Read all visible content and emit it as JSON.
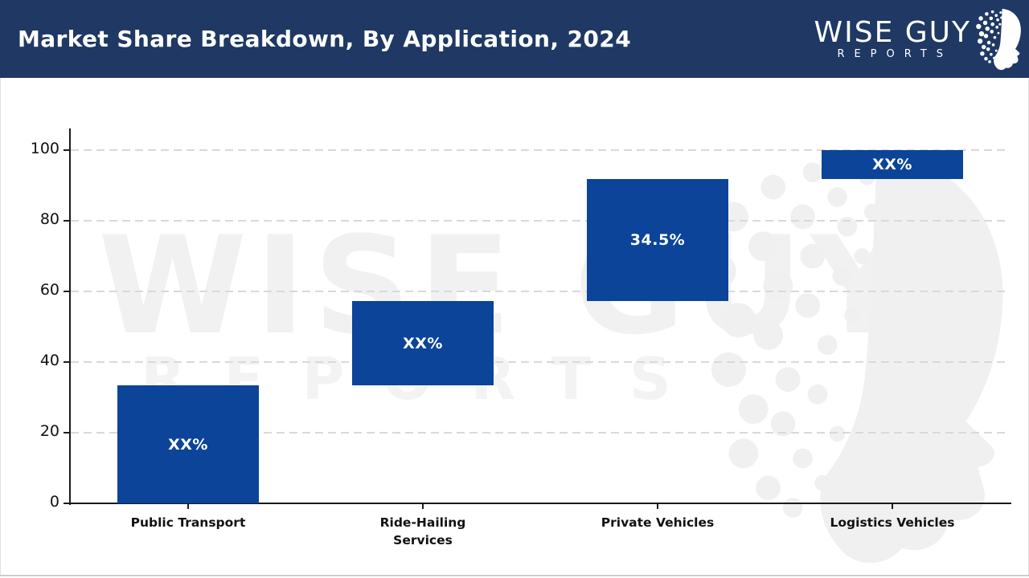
{
  "header": {
    "bg_color": "#1f3864",
    "title": "Market Share Breakdown, By Application, 2024",
    "logo": {
      "wordmark": "WISE GUY",
      "subtitle": "REPORTS"
    }
  },
  "watermark": {
    "wordmark": "WISE GUY",
    "subtitle": "REPORTS"
  },
  "chart_data": {
    "type": "bar",
    "subtype": "floating-waterfall",
    "title": "Market Share Breakdown, By Application, 2024",
    "categories": [
      "Public Transport",
      "Ride-Hailing\nServices",
      "Private Vehicles",
      "Logistics Vehicles"
    ],
    "segments": [
      {
        "category": "Public Transport",
        "start": 0,
        "end": 33.3,
        "label": "XX%"
      },
      {
        "category": "Ride-Hailing Services",
        "start": 33.3,
        "end": 57.3,
        "label": "XX%"
      },
      {
        "category": "Private Vehicles",
        "start": 57.3,
        "end": 91.8,
        "label": "34.5%"
      },
      {
        "category": "Logistics Vehicles",
        "start": 91.8,
        "end": 100,
        "label": "XX%"
      }
    ],
    "yticks": [
      0,
      20,
      40,
      60,
      80,
      100
    ],
    "ylim": [
      0,
      106
    ],
    "xlabel": "",
    "ylabel": "",
    "grid": "horizontal-dashed",
    "legend": "none",
    "colors": {
      "bar": "#0b4498",
      "bar_label": "#ffffff",
      "axis": "#1a1a1a",
      "gridline": "#d9d9d9",
      "header_bg": "#1f3864",
      "watermark": "#f1f1f1"
    }
  }
}
